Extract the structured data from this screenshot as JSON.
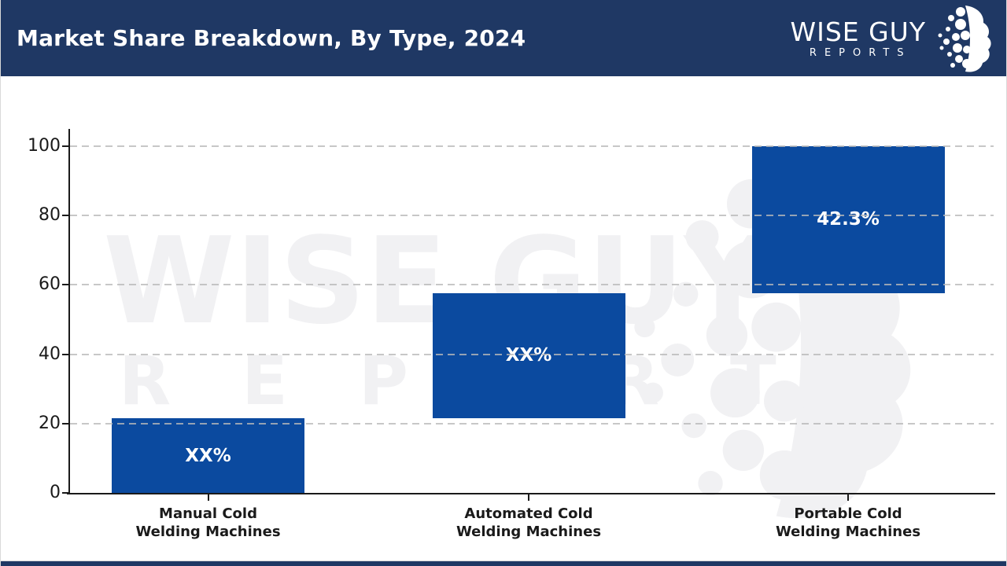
{
  "header": {
    "title": "Market Share Breakdown, By Type, 2024",
    "logo": {
      "top": "WISE GUY",
      "bottom": "REPORTS"
    }
  },
  "watermark": {
    "top": "WISE GUY",
    "bottom": "REPORTS"
  },
  "colors": {
    "header_bg": "#1f3864",
    "bar": "#0b4a9f",
    "grid": "#bcbcbc",
    "axis": "#1a1a1a",
    "watermark": "#f1f1f3",
    "bar_label": "#ffffff",
    "footer_bar": "#1f3864"
  },
  "chart_data": {
    "type": "bar",
    "variant": "stacked-waterfall",
    "title": "Market Share Breakdown, By Type, 2024",
    "categories": [
      "Manual Cold Welding Machines",
      "Automated Cold Welding Machines",
      "Portable Cold Welding Machines"
    ],
    "category_lines": [
      [
        "Manual Cold",
        "Welding Machines"
      ],
      [
        "Automated Cold",
        "Welding Machines"
      ],
      [
        "Portable Cold",
        "Welding Machines"
      ]
    ],
    "segments": [
      {
        "category": "Manual Cold Welding Machines",
        "start": 0,
        "end": 21.5,
        "value": 21.5,
        "label": "XX%"
      },
      {
        "category": "Automated Cold Welding Machines",
        "start": 21.5,
        "end": 57.7,
        "value": 36.2,
        "label": "XX%"
      },
      {
        "category": "Portable Cold Welding Machines",
        "start": 57.7,
        "end": 100,
        "value": 42.3,
        "label": "42.3%"
      }
    ],
    "yticks": [
      0,
      20,
      40,
      60,
      80,
      100
    ],
    "ylim": [
      0,
      105
    ],
    "xlabel": "",
    "ylabel": "",
    "grid": "dashed-horizontal",
    "legend_position": "none"
  }
}
